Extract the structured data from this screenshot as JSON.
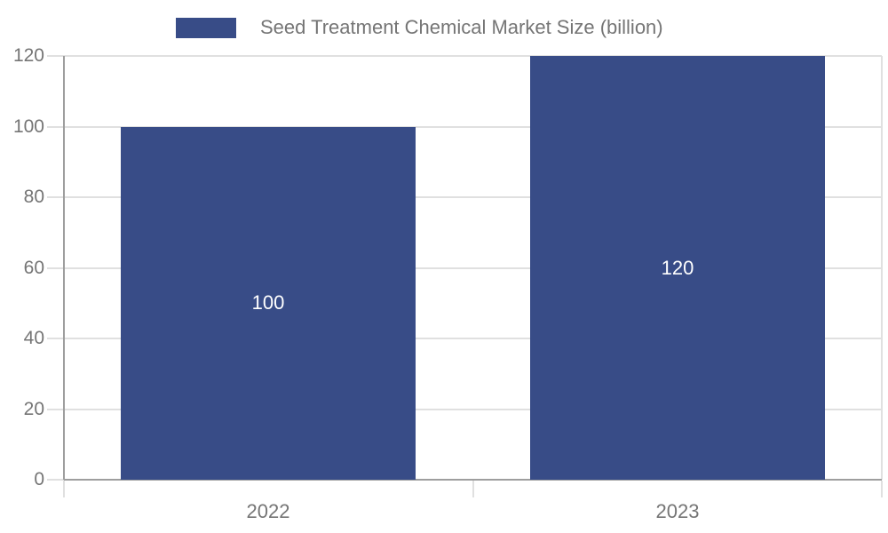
{
  "chart_data": {
    "type": "bar",
    "title": "",
    "series_name": "Seed Treatment Chemical Market Size (billion)",
    "categories": [
      "2022",
      "2023"
    ],
    "values": [
      100,
      120
    ],
    "ylim": [
      0,
      120
    ],
    "ytick_step": 20,
    "grid": true,
    "legend_position": "top-center",
    "bar_color": "#384C87",
    "grid_color": "#E0E0E0",
    "axis_color": "#9E9E9E",
    "tick_label_color": "#757575",
    "value_label_color": "#FFFFFF",
    "background_color": "#FFFFFF"
  }
}
